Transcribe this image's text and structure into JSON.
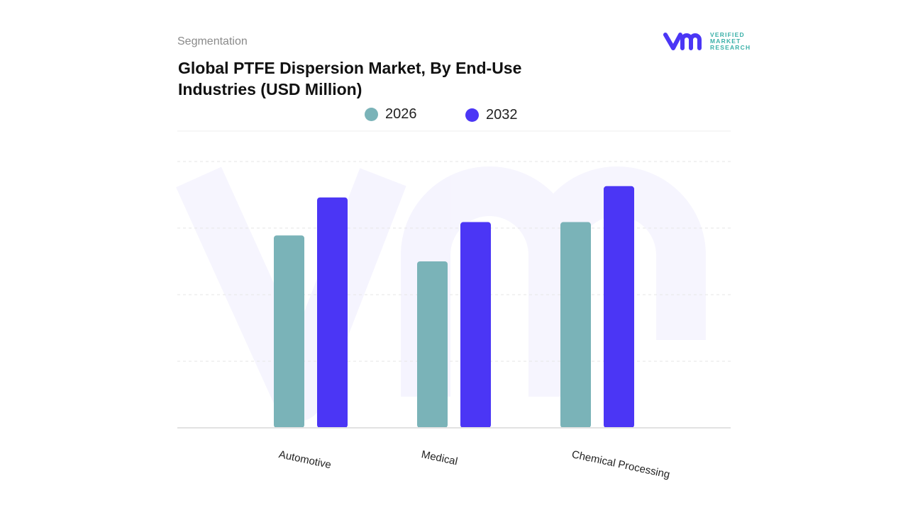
{
  "header": {
    "segment_label": "Segmentation",
    "title": "Global PTFE Dispersion Market, By End-Use Industries (USD Million)"
  },
  "logo": {
    "mark": "vmr",
    "line1": "VERIFIED",
    "line2": "MARKET",
    "line3": "RESEARCH"
  },
  "chart_data": {
    "type": "bar",
    "title": "Global PTFE Dispersion Market, By End-Use Industries (USD Million)",
    "categories": [
      "Automotive",
      "Medical",
      "Chemical Processing"
    ],
    "series": [
      {
        "name": "2026",
        "color": "#7ab3b8",
        "values": [
          2.89,
          2.5,
          3.09
        ]
      },
      {
        "name": "2032",
        "color": "#4b36f5",
        "values": [
          3.46,
          3.09,
          3.63
        ]
      }
    ],
    "ylim": [
      0,
      4
    ],
    "y_tick_labels_shown": false,
    "grid": true,
    "legend": "top-center",
    "xlabel": "",
    "ylabel": ""
  }
}
